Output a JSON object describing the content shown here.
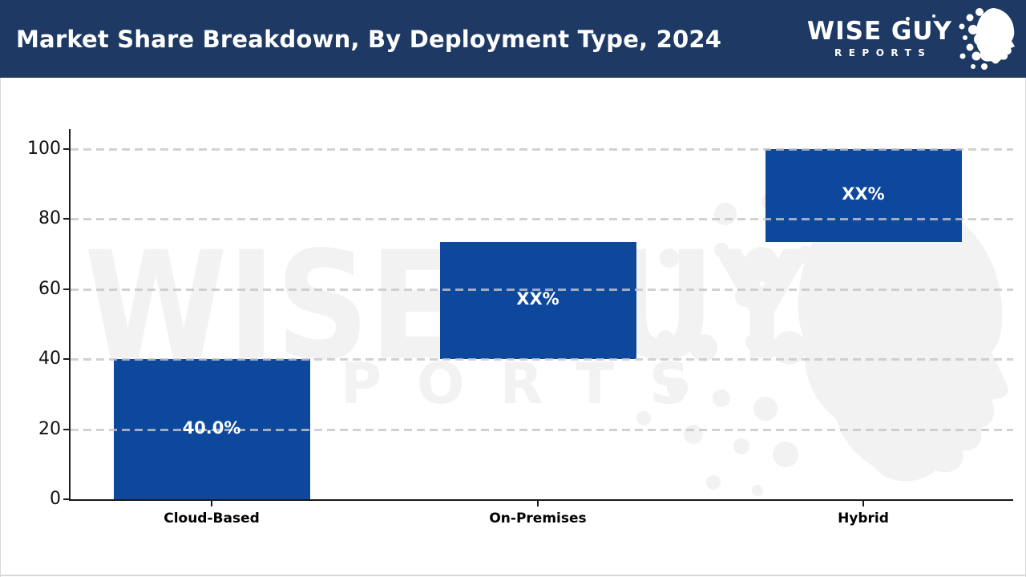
{
  "header": {
    "title": "Market Share Breakdown, By Deployment Type, 2024",
    "bg_color": "#1e3a64",
    "logo": {
      "line1": "WISE GUY",
      "line2": "REPORTS"
    }
  },
  "watermark": {
    "line1": "WISE GUY",
    "line2": "REPORTS"
  },
  "chart_data": {
    "type": "bar",
    "subtype": "waterfall",
    "title": "Market Share Breakdown, By Deployment Type, 2024",
    "categories": [
      "Cloud-Based",
      "On-Premises",
      "Hybrid"
    ],
    "segments": [
      {
        "category": "Cloud-Based",
        "start": 0,
        "end": 40,
        "label": "40.0%"
      },
      {
        "category": "On-Premises",
        "start": 40,
        "end": 73.4,
        "label": "XX%"
      },
      {
        "category": "Hybrid",
        "start": 73.4,
        "end": 100,
        "label": "XX%"
      }
    ],
    "yticks": [
      0,
      20,
      40,
      60,
      80,
      100
    ],
    "ylim": [
      0,
      105
    ],
    "xlabel": "",
    "ylabel": "",
    "grid": "horizontal-dashed",
    "legend": "none",
    "bar_color": "#0d489c",
    "gridline_color": "#c6c6c6",
    "axis_color": "#1a1a1a",
    "bar_label_color": "#ffffff"
  }
}
